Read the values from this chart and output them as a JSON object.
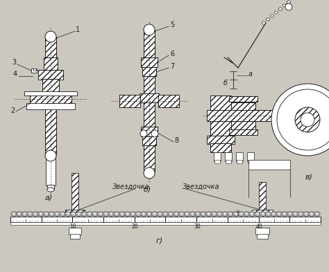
{
  "bg_color": "#ccc8c0",
  "line_color": "#1a1a1a",
  "title_a": "а)",
  "title_b": "б)",
  "title_v": "в)",
  "title_g": "г)",
  "label_v_a": "а",
  "label_v_b": "б",
  "zvezdochka1": "Звездочка",
  "zvezdochka2": "Звездочка",
  "ruler_ticks": [
    "10",
    "20",
    "30",
    "40"
  ],
  "figsize": [
    4.74,
    3.93
  ],
  "dpi": 100
}
